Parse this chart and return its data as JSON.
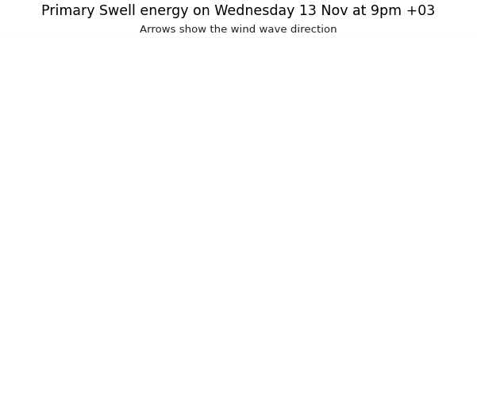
{
  "title": "Primary Swell energy on Wednesday 13 Nov at 9pm +03",
  "subtitle": "Arrows show the wind wave direction",
  "title_fontsize": 12.5,
  "subtitle_fontsize": 9.5,
  "title_color": "#000000",
  "subtitle_color": "#222222",
  "header_bg": "#ffffff",
  "fig_width": 6.01,
  "fig_height": 5.07,
  "dpi": 100,
  "extent": [
    22.0,
    68.0,
    12.0,
    48.5
  ],
  "arrow_color": "#00eedd",
  "arrows": [
    [
      27.0,
      35.8,
      -0.4,
      0.3
    ],
    [
      27.8,
      36.5,
      -0.3,
      0.4
    ],
    [
      29.2,
      35.5,
      -0.2,
      0.4
    ],
    [
      30.5,
      35.2,
      -0.1,
      0.4
    ],
    [
      32.5,
      35.8,
      0.1,
      0.3
    ],
    [
      155.0,
      37.5,
      0.3,
      0.2
    ],
    [
      36.5,
      24.5,
      0.1,
      0.4
    ],
    [
      38.0,
      26.0,
      0.1,
      0.3
    ],
    [
      57.5,
      23.5,
      -0.3,
      0.3
    ],
    [
      59.5,
      22.0,
      -0.3,
      0.3
    ],
    [
      61.0,
      21.5,
      -0.2,
      0.4
    ],
    [
      50.5,
      41.0,
      0.3,
      0.2
    ],
    [
      52.0,
      27.5,
      -0.2,
      0.2
    ]
  ],
  "water_color": "#050505",
  "land_base_color": "#b0b0b0",
  "border_color": "#111111",
  "border_lw": 0.6
}
